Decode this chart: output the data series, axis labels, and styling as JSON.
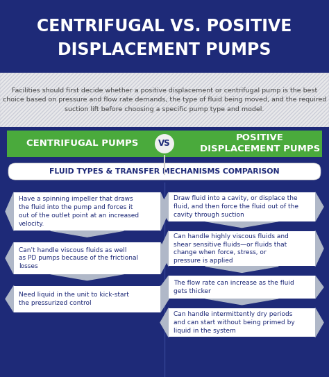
{
  "bg_color": "#1e2a78",
  "title_line1": "CENTRIFUGAL VS. POSITIVE",
  "title_line2": "DISPLACEMENT PUMPS",
  "title_color": "#ffffff",
  "title_fontsize": 17,
  "subtitle_bg": "#e8e8ea",
  "subtitle_text": "Facilities should first decide whether a positive displacement or centrifugal pump is the best\nchoice based on pressure and flow rate demands, the type of fluid being moved, and the required\nsuction lift before choosing a specific pump type and model.",
  "subtitle_color": "#444444",
  "subtitle_fontsize": 6.8,
  "vs_bar_color": "#4aaa3c",
  "vs_text": "VS",
  "left_label": "CENTRIFUGAL PUMPS",
  "right_label": "POSITIVE\nDISPLACEMENT PUMPS",
  "label_color": "#ffffff",
  "label_fontsize": 9.5,
  "section_label": "FLUID TYPES & TRANSFER MECHANISMS COMPARISON",
  "section_label_color": "#1e2a78",
  "section_label_fontsize": 7.8,
  "left_items": [
    "Have a spinning impeller that draws\nthe fluid into the pump and forces it\nout of the outlet point at an increased\nvelocity.",
    "Can't handle viscous fluids as well\nas PD pumps because of the frictional\nlosses",
    "Need liquid in the unit to kick-start\nthe pressurized control"
  ],
  "right_items": [
    "Draw fluid into a cavity, or displace the\nfluid, and then force the fluid out of the\ncavity through suction",
    "Can handle highly viscous fluids and\nshear sensitive fluids—or fluids that\nchange when force, stress, or\npressure is applied",
    "The flow rate can increase as the fluid\ngets thicker",
    "Can handle intermittently dry periods\nand can start without being primed by\nliquid in the system"
  ],
  "item_text_color": "#1e2a78",
  "item_fontsize": 6.5,
  "arrow_color": "#b0b8c8",
  "divider_color": "#ffffff"
}
